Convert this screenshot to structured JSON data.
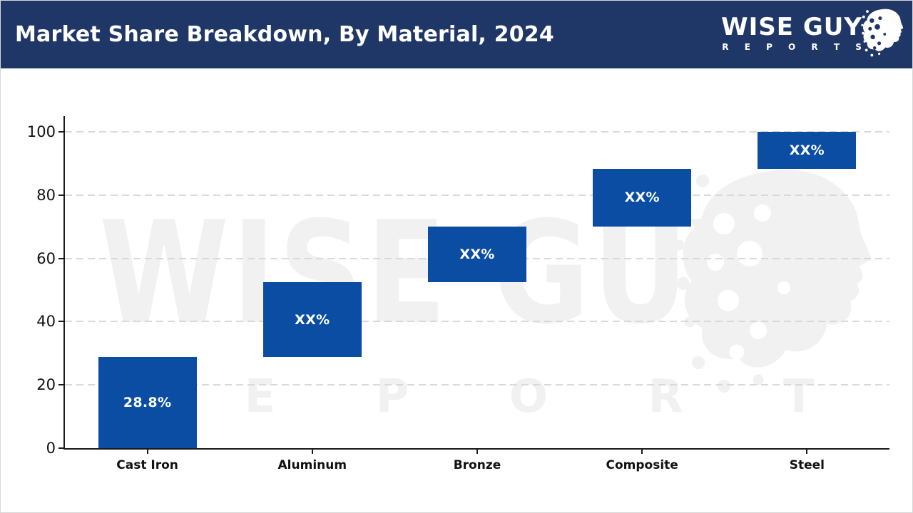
{
  "header": {
    "title": "Market Share Breakdown, By Material, 2024",
    "logo": {
      "wordmark": "WISE GUY",
      "tagline": "R E P O R T S"
    }
  },
  "watermark": {
    "wordmark": "WISE GUY",
    "tagline": "R E P O R T S"
  },
  "colors": {
    "header_bg": "#1f3766",
    "bar": "#0b4da2",
    "bar_label": "#ffffff",
    "grid": "#d9d9d9",
    "axis": "#1a1a1a",
    "watermark": "#f1f1f1"
  },
  "chart_data": {
    "type": "bar",
    "subtype": "waterfall",
    "title": "Market Share Breakdown, By Material, 2024",
    "categories": [
      "Cast Iron",
      "Aluminum",
      "Bronze",
      "Composite",
      "Steel"
    ],
    "segments": [
      {
        "category": "Cast Iron",
        "start": 0,
        "end": 28.8,
        "label": "28.8%"
      },
      {
        "category": "Aluminum",
        "start": 28.8,
        "end": 52.5,
        "label": "XX%"
      },
      {
        "category": "Bronze",
        "start": 52.5,
        "end": 70.1,
        "label": "XX%"
      },
      {
        "category": "Composite",
        "start": 70.1,
        "end": 88.3,
        "label": "XX%"
      },
      {
        "category": "Steel",
        "start": 88.3,
        "end": 100,
        "label": "XX%"
      }
    ],
    "xlabel": "",
    "ylabel": "",
    "yticks": [
      0,
      20,
      40,
      60,
      80,
      100
    ],
    "ylim": [
      0,
      105
    ],
    "grid": {
      "axis": "y",
      "style": "dashed"
    },
    "legend": "none",
    "bar_color": "#0b4da2"
  }
}
